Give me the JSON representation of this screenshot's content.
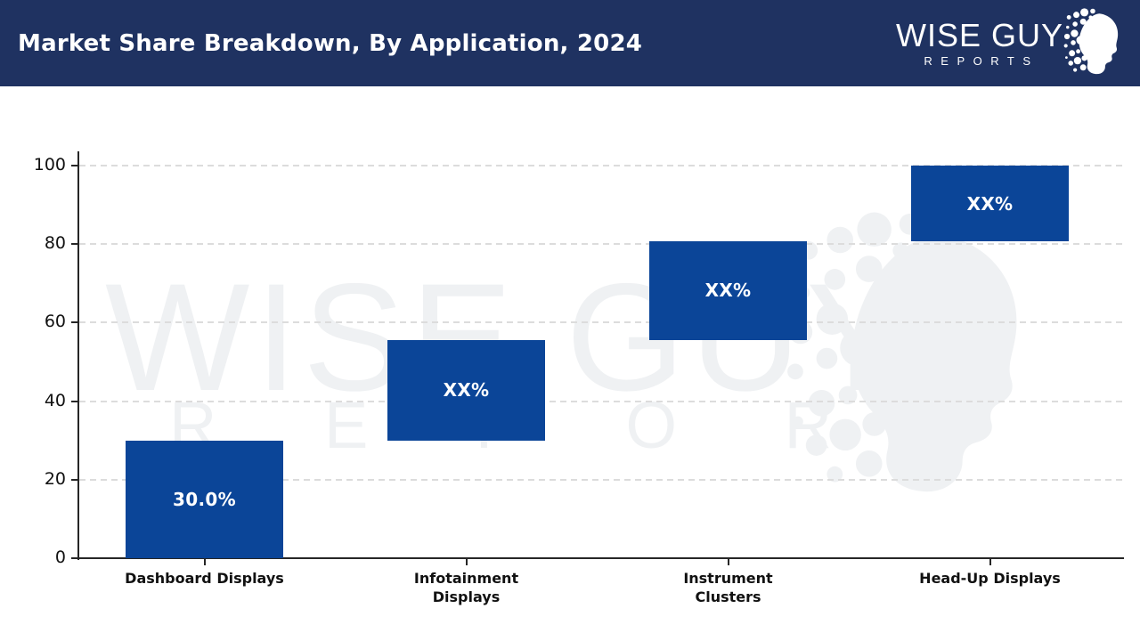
{
  "header": {
    "title": "Market Share Breakdown, By Application, 2024",
    "logo": {
      "line1": "WISE GUY",
      "line2": "REPORTS"
    }
  },
  "watermark": {
    "line1": "WISE GUY",
    "line2": "R E P O R T S"
  },
  "colors": {
    "header_bg": "#1f3261",
    "bar_fill": "#0b4598",
    "grid": "#dcdcdc",
    "axis": "#262626",
    "watermark": "#eff1f3"
  },
  "chart_data": {
    "type": "bar",
    "subtype": "floating-waterfall",
    "title": "Market Share Breakdown, By Application, 2024",
    "xlabel": "",
    "ylabel": "",
    "ylim": [
      0,
      100
    ],
    "yticks": [
      0,
      20,
      40,
      60,
      80,
      100
    ],
    "grid": "horizontal-dashed",
    "legend": "none",
    "categories": [
      "Dashboard Displays",
      "Infotainment\nDisplays",
      "Instrument\nClusters",
      "Head-Up Displays"
    ],
    "segments": [
      {
        "category": "Dashboard Displays",
        "start": 0,
        "end": 30,
        "label": "30.0%"
      },
      {
        "category": "Infotainment Displays",
        "start": 30,
        "end": 55.6,
        "label": "XX%"
      },
      {
        "category": "Instrument Clusters",
        "start": 55.6,
        "end": 80.7,
        "label": "XX%"
      },
      {
        "category": "Head-Up Displays",
        "start": 80.7,
        "end": 100,
        "label": "XX%"
      }
    ]
  }
}
